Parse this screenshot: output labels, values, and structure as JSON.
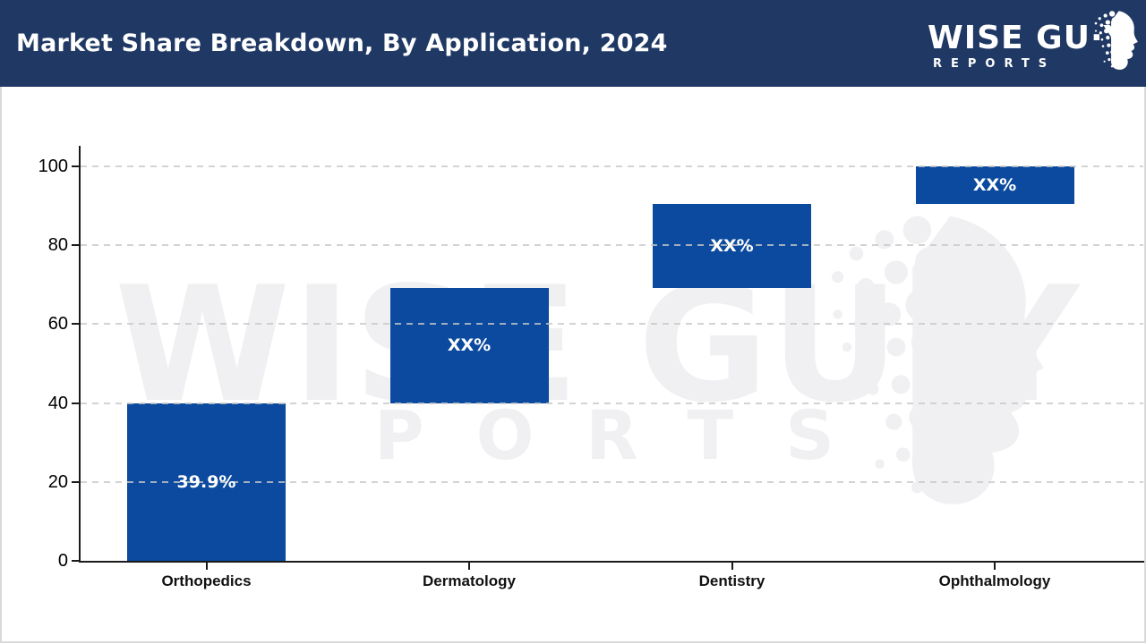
{
  "header": {
    "title": "Market Share Breakdown, By Application, 2024",
    "bg_color": "#1f3864",
    "logo": {
      "name": "WISE GU·Y",
      "tagline": "REPORTS"
    }
  },
  "watermark": {
    "line1": "WISE GU·Y",
    "line2": "PORTS"
  },
  "chart_data": {
    "type": "bar",
    "subtype": "waterfall",
    "title": "Market Share Breakdown, By Application, 2024",
    "categories": [
      "Orthopedics",
      "Dermatology",
      "Dentistry",
      "Ophthalmology"
    ],
    "bars": [
      {
        "category": "Orthopedics",
        "start": 0,
        "end": 39.9,
        "value_label": "39.9%"
      },
      {
        "category": "Dermatology",
        "start": 39.9,
        "end": 69.2,
        "value_label": "XX%"
      },
      {
        "category": "Dentistry",
        "start": 69.2,
        "end": 90.4,
        "value_label": "XX%"
      },
      {
        "category": "Ophthalmology",
        "start": 90.4,
        "end": 100,
        "value_label": "XX%"
      }
    ],
    "xlabel": "",
    "ylabel": "",
    "ylim": [
      0,
      100
    ],
    "yticks": [
      0,
      20,
      40,
      60,
      80,
      100
    ],
    "grid": {
      "horizontal": true,
      "style": "dashed"
    },
    "legend": false,
    "bar_color": "#0b4a9e",
    "gridline_color": "#d0d0d0"
  }
}
